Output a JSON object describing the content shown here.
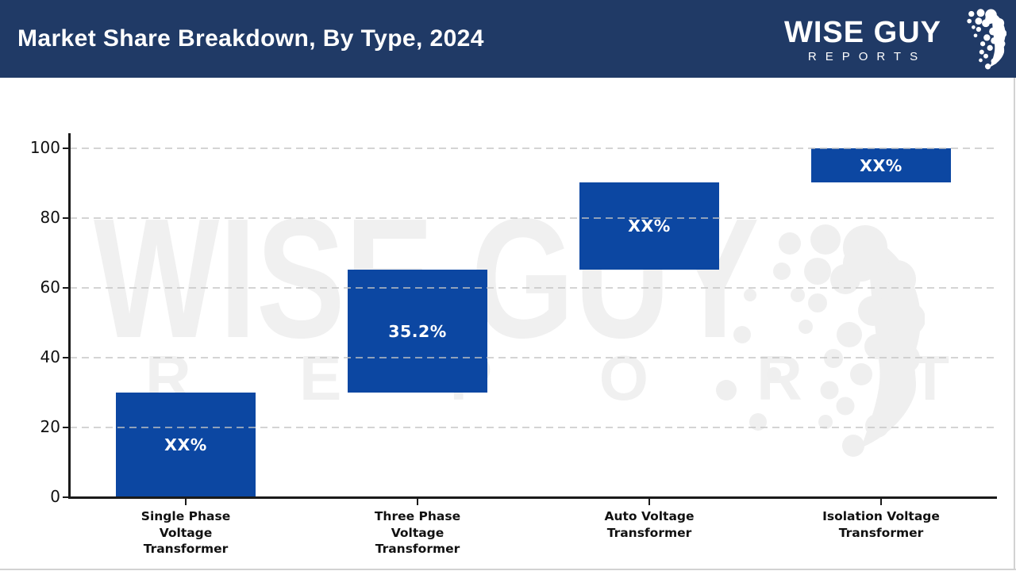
{
  "header": {
    "title": "Market Share Breakdown, By Type, 2024",
    "logo": {
      "line1": "WISE GUY",
      "line2": "REPORTS"
    },
    "bg_color": "#203a66"
  },
  "watermark": {
    "line1": "WISE GUY",
    "line2": "R E P O R T S"
  },
  "chart_data": {
    "type": "bar",
    "subtype": "floating-stacked-market-share",
    "title": "Market Share Breakdown, By Type, 2024",
    "categories": [
      "Single Phase\nVoltage\nTransformer",
      "Three Phase\nVoltage\nTransformer",
      "Auto Voltage\nTransformer",
      "Isolation Voltage\nTransformer"
    ],
    "bars": [
      {
        "category": "Single Phase Voltage Transformer",
        "label": "XX%",
        "start": 0,
        "end": 30,
        "height": 30
      },
      {
        "category": "Three Phase Voltage Transformer",
        "label": "35.2%",
        "start": 30,
        "end": 65.2,
        "height": 35.2
      },
      {
        "category": "Auto Voltage Transformer",
        "label": "XX%",
        "start": 65.2,
        "end": 90.2,
        "height": 25
      },
      {
        "category": "Isolation Voltage Transformer",
        "label": "XX%",
        "start": 90.2,
        "end": 100,
        "height": 9.8
      }
    ],
    "y_ticks": [
      0,
      20,
      40,
      60,
      80,
      100
    ],
    "ylim": [
      0,
      105
    ],
    "xlabel": "",
    "ylabel": "",
    "grid": "horizontal-dashed",
    "legend": "none",
    "bar_color": "#0c47a2",
    "bar_label_color": "#ffffff"
  }
}
